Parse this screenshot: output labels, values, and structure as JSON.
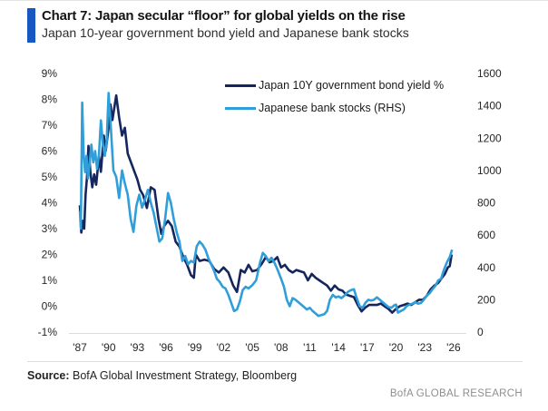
{
  "header": {
    "title": "Chart 7: Japan secular “floor” for global yields on the rise",
    "subtitle": "Japan 10-year government bond yield and Japanese bank stocks"
  },
  "source": {
    "label": "Source:",
    "text": " BofA Global Investment Strategy, Bloomberg"
  },
  "footer": {
    "brand": "BofA GLOBAL RESEARCH"
  },
  "colors": {
    "accent_bar": "#1757c2",
    "bond_yield_line": "#14265d",
    "bank_stocks_line": "#2f9ed9",
    "axis_text": "#262626",
    "separator": "#dcdcdc"
  },
  "chart_data": {
    "type": "line",
    "title": "Chart 7: Japan secular “floor” for global yields on the rise",
    "subtitle": "Japan 10-year government bond yield and Japanese bank stocks",
    "grid": false,
    "legend_position": "top-center",
    "x_range": [
      1987,
      2026.2
    ],
    "x_ticks": [
      [
        1987,
        "'87"
      ],
      [
        1990,
        "'90"
      ],
      [
        1993,
        "'93"
      ],
      [
        1996,
        "'96"
      ],
      [
        1999,
        "'99"
      ],
      [
        2002,
        "'02"
      ],
      [
        2005,
        "'05"
      ],
      [
        2008,
        "'08"
      ],
      [
        2011,
        "'11"
      ],
      [
        2014,
        "'14"
      ],
      [
        2017,
        "'17"
      ],
      [
        2020,
        "'20"
      ],
      [
        2023,
        "'23"
      ],
      [
        2026,
        "'26"
      ]
    ],
    "left_axis": {
      "range": [
        -1,
        9
      ],
      "ticks": [
        [
          9,
          "9%"
        ],
        [
          8,
          "8%"
        ],
        [
          7,
          "7%"
        ],
        [
          6,
          "6%"
        ],
        [
          5,
          "5%"
        ],
        [
          4,
          "4%"
        ],
        [
          3,
          "3%"
        ],
        [
          2,
          "2%"
        ],
        [
          1,
          "1%"
        ],
        [
          0,
          "0%"
        ],
        [
          -1,
          "-1%"
        ]
      ]
    },
    "right_axis": {
      "range": [
        0,
        1600
      ],
      "ticks": [
        [
          1600,
          "1600"
        ],
        [
          1400,
          "1400"
        ],
        [
          1200,
          "1200"
        ],
        [
          1000,
          "1000"
        ],
        [
          800,
          "800"
        ],
        [
          600,
          "600"
        ],
        [
          400,
          "400"
        ],
        [
          200,
          "200"
        ],
        [
          0,
          "0"
        ]
      ]
    },
    "series": [
      {
        "name": "Japan 10Y government bond yield %",
        "axis": "left",
        "color": "#14265d",
        "points": [
          [
            1987.0,
            3.9
          ],
          [
            1987.15,
            2.85
          ],
          [
            1987.3,
            3.3
          ],
          [
            1987.45,
            3.0
          ],
          [
            1987.6,
            4.3
          ],
          [
            1987.75,
            5.0
          ],
          [
            1987.9,
            6.2
          ],
          [
            1988.1,
            5.2
          ],
          [
            1988.3,
            4.6
          ],
          [
            1988.5,
            5.1
          ],
          [
            1988.7,
            4.7
          ],
          [
            1989.0,
            5.8
          ],
          [
            1989.2,
            5.2
          ],
          [
            1989.5,
            6.6
          ],
          [
            1989.7,
            6.0
          ],
          [
            1990.0,
            6.9
          ],
          [
            1990.2,
            7.8
          ],
          [
            1990.4,
            7.2
          ],
          [
            1990.8,
            8.15
          ],
          [
            1991.1,
            7.3
          ],
          [
            1991.4,
            6.6
          ],
          [
            1991.7,
            6.9
          ],
          [
            1992.0,
            5.9
          ],
          [
            1992.3,
            5.6
          ],
          [
            1992.7,
            5.2
          ],
          [
            1993.0,
            4.9
          ],
          [
            1993.3,
            4.5
          ],
          [
            1993.6,
            4.3
          ],
          [
            1994.0,
            3.8
          ],
          [
            1994.4,
            4.6
          ],
          [
            1994.8,
            4.5
          ],
          [
            1995.2,
            3.4
          ],
          [
            1995.5,
            2.8
          ],
          [
            1995.8,
            3.1
          ],
          [
            1996.2,
            3.3
          ],
          [
            1996.6,
            3.1
          ],
          [
            1997.0,
            2.5
          ],
          [
            1997.4,
            2.3
          ],
          [
            1997.8,
            1.9
          ],
          [
            1998.2,
            1.6
          ],
          [
            1998.6,
            1.2
          ],
          [
            1998.9,
            1.1
          ],
          [
            1999.1,
            2.0
          ],
          [
            1999.5,
            1.75
          ],
          [
            2000.0,
            1.8
          ],
          [
            2000.5,
            1.75
          ],
          [
            2001.0,
            1.45
          ],
          [
            2001.5,
            1.3
          ],
          [
            2002.0,
            1.5
          ],
          [
            2002.5,
            1.3
          ],
          [
            2003.0,
            0.8
          ],
          [
            2003.4,
            0.55
          ],
          [
            2003.8,
            1.4
          ],
          [
            2004.2,
            1.3
          ],
          [
            2004.6,
            1.6
          ],
          [
            2005.0,
            1.35
          ],
          [
            2005.5,
            1.4
          ],
          [
            2006.0,
            1.65
          ],
          [
            2006.4,
            1.9
          ],
          [
            2006.8,
            1.7
          ],
          [
            2007.2,
            1.75
          ],
          [
            2007.6,
            1.9
          ],
          [
            2008.0,
            1.5
          ],
          [
            2008.4,
            1.6
          ],
          [
            2008.8,
            1.4
          ],
          [
            2009.2,
            1.3
          ],
          [
            2009.6,
            1.4
          ],
          [
            2010.0,
            1.35
          ],
          [
            2010.4,
            1.3
          ],
          [
            2010.8,
            1.0
          ],
          [
            2011.2,
            1.25
          ],
          [
            2011.6,
            1.1
          ],
          [
            2012.0,
            1.0
          ],
          [
            2012.4,
            0.9
          ],
          [
            2012.8,
            0.8
          ],
          [
            2013.2,
            0.6
          ],
          [
            2013.6,
            0.8
          ],
          [
            2014.0,
            0.65
          ],
          [
            2014.4,
            0.6
          ],
          [
            2014.8,
            0.45
          ],
          [
            2015.2,
            0.4
          ],
          [
            2015.6,
            0.35
          ],
          [
            2016.0,
            0.05
          ],
          [
            2016.4,
            -0.2
          ],
          [
            2016.8,
            -0.05
          ],
          [
            2017.2,
            0.05
          ],
          [
            2017.6,
            0.05
          ],
          [
            2018.0,
            0.05
          ],
          [
            2018.4,
            0.1
          ],
          [
            2018.8,
            0.0
          ],
          [
            2019.2,
            -0.1
          ],
          [
            2019.6,
            -0.25
          ],
          [
            2020.0,
            -0.1
          ],
          [
            2020.4,
            0.0
          ],
          [
            2020.8,
            0.05
          ],
          [
            2021.2,
            0.1
          ],
          [
            2021.6,
            0.05
          ],
          [
            2022.0,
            0.15
          ],
          [
            2022.4,
            0.25
          ],
          [
            2022.8,
            0.25
          ],
          [
            2023.2,
            0.4
          ],
          [
            2023.6,
            0.65
          ],
          [
            2024.0,
            0.8
          ],
          [
            2024.4,
            0.9
          ],
          [
            2024.8,
            1.1
          ],
          [
            2025.1,
            1.25
          ],
          [
            2025.4,
            1.5
          ],
          [
            2025.6,
            1.55
          ],
          [
            2025.8,
            2.0
          ]
        ]
      },
      {
        "name": "Japanese bank stocks (RHS)",
        "axis": "right",
        "color": "#2f9ed9",
        "points": [
          [
            1987.0,
            750
          ],
          [
            1987.1,
            640
          ],
          [
            1987.25,
            1420
          ],
          [
            1987.4,
            1100
          ],
          [
            1987.55,
            990
          ],
          [
            1987.7,
            1090
          ],
          [
            1987.85,
            950
          ],
          [
            1988.0,
            1030
          ],
          [
            1988.2,
            1160
          ],
          [
            1988.4,
            1050
          ],
          [
            1988.6,
            1120
          ],
          [
            1988.8,
            1010
          ],
          [
            1989.0,
            1100
          ],
          [
            1989.2,
            1310
          ],
          [
            1989.4,
            1170
          ],
          [
            1989.6,
            1090
          ],
          [
            1989.8,
            1180
          ],
          [
            1990.0,
            1480
          ],
          [
            1990.2,
            1300
          ],
          [
            1990.5,
            1000
          ],
          [
            1990.8,
            960
          ],
          [
            1991.1,
            830
          ],
          [
            1991.4,
            1000
          ],
          [
            1991.7,
            920
          ],
          [
            1992.0,
            850
          ],
          [
            1992.3,
            700
          ],
          [
            1992.6,
            620
          ],
          [
            1992.9,
            780
          ],
          [
            1993.2,
            850
          ],
          [
            1993.5,
            770
          ],
          [
            1993.8,
            820
          ],
          [
            1994.1,
            880
          ],
          [
            1994.4,
            800
          ],
          [
            1994.7,
            740
          ],
          [
            1995.0,
            650
          ],
          [
            1995.3,
            560
          ],
          [
            1995.6,
            580
          ],
          [
            1995.9,
            700
          ],
          [
            1996.2,
            860
          ],
          [
            1996.5,
            800
          ],
          [
            1996.8,
            700
          ],
          [
            1997.1,
            620
          ],
          [
            1997.4,
            560
          ],
          [
            1997.7,
            440
          ],
          [
            1998.0,
            470
          ],
          [
            1998.3,
            420
          ],
          [
            1998.6,
            440
          ],
          [
            1998.9,
            430
          ],
          [
            1999.2,
            530
          ],
          [
            1999.5,
            560
          ],
          [
            1999.8,
            540
          ],
          [
            2000.1,
            510
          ],
          [
            2000.4,
            460
          ],
          [
            2000.7,
            420
          ],
          [
            2001.0,
            380
          ],
          [
            2001.3,
            330
          ],
          [
            2001.6,
            310
          ],
          [
            2001.9,
            280
          ],
          [
            2002.2,
            270
          ],
          [
            2002.5,
            230
          ],
          [
            2002.8,
            180
          ],
          [
            2003.1,
            130
          ],
          [
            2003.4,
            140
          ],
          [
            2003.7,
            190
          ],
          [
            2004.0,
            260
          ],
          [
            2004.3,
            280
          ],
          [
            2004.6,
            270
          ],
          [
            2005.0,
            290
          ],
          [
            2005.4,
            320
          ],
          [
            2005.8,
            430
          ],
          [
            2006.1,
            490
          ],
          [
            2006.4,
            470
          ],
          [
            2006.7,
            440
          ],
          [
            2007.0,
            460
          ],
          [
            2007.3,
            430
          ],
          [
            2007.6,
            390
          ],
          [
            2008.0,
            330
          ],
          [
            2008.3,
            280
          ],
          [
            2008.6,
            200
          ],
          [
            2008.9,
            160
          ],
          [
            2009.2,
            210
          ],
          [
            2009.5,
            200
          ],
          [
            2009.8,
            185
          ],
          [
            2010.1,
            170
          ],
          [
            2010.4,
            155
          ],
          [
            2010.7,
            140
          ],
          [
            2011.0,
            150
          ],
          [
            2011.3,
            130
          ],
          [
            2011.6,
            115
          ],
          [
            2011.9,
            100
          ],
          [
            2012.2,
            105
          ],
          [
            2012.5,
            110
          ],
          [
            2012.8,
            130
          ],
          [
            2013.1,
            200
          ],
          [
            2013.4,
            230
          ],
          [
            2013.7,
            215
          ],
          [
            2014.0,
            220
          ],
          [
            2014.3,
            210
          ],
          [
            2014.6,
            225
          ],
          [
            2015.0,
            250
          ],
          [
            2015.3,
            260
          ],
          [
            2015.6,
            265
          ],
          [
            2015.9,
            210
          ],
          [
            2016.2,
            160
          ],
          [
            2016.5,
            150
          ],
          [
            2016.8,
            180
          ],
          [
            2017.1,
            200
          ],
          [
            2017.4,
            195
          ],
          [
            2017.7,
            200
          ],
          [
            2018.0,
            215
          ],
          [
            2018.3,
            200
          ],
          [
            2018.6,
            185
          ],
          [
            2018.9,
            170
          ],
          [
            2019.2,
            155
          ],
          [
            2019.5,
            150
          ],
          [
            2019.8,
            165
          ],
          [
            2020.0,
            170
          ],
          [
            2020.2,
            120
          ],
          [
            2020.5,
            130
          ],
          [
            2020.8,
            140
          ],
          [
            2021.1,
            160
          ],
          [
            2021.4,
            170
          ],
          [
            2021.7,
            175
          ],
          [
            2022.0,
            185
          ],
          [
            2022.3,
            175
          ],
          [
            2022.6,
            180
          ],
          [
            2022.9,
            200
          ],
          [
            2023.2,
            225
          ],
          [
            2023.5,
            240
          ],
          [
            2023.8,
            265
          ],
          [
            2024.1,
            285
          ],
          [
            2024.4,
            320
          ],
          [
            2024.7,
            330
          ],
          [
            2025.0,
            385
          ],
          [
            2025.3,
            430
          ],
          [
            2025.6,
            465
          ],
          [
            2025.85,
            510
          ]
        ]
      }
    ]
  }
}
